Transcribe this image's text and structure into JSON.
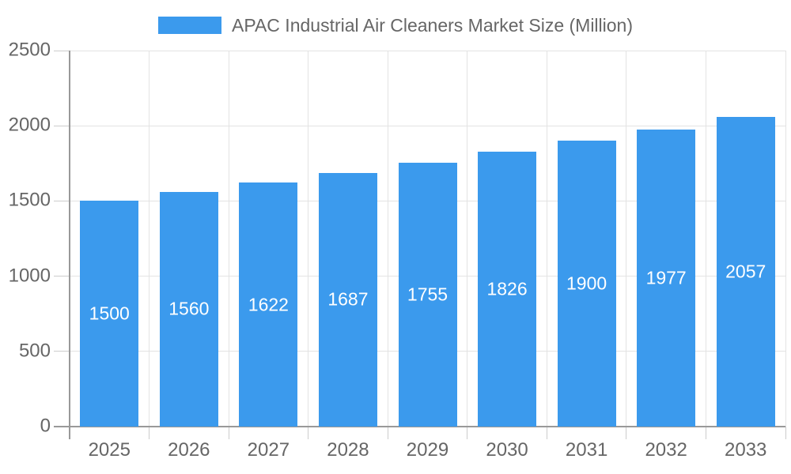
{
  "chart_data": {
    "type": "bar",
    "title": "APAC Industrial Air Cleaners Market Size (Million)",
    "legend": {
      "label": "APAC Industrial Air Cleaners Market Size (Million)",
      "position": "top-center"
    },
    "categories": [
      "2025",
      "2026",
      "2027",
      "2028",
      "2029",
      "2030",
      "2031",
      "2032",
      "2033"
    ],
    "series": [
      {
        "name": "APAC Industrial Air Cleaners Market Size (Million)",
        "values": [
          1500,
          1560,
          1622,
          1687,
          1755,
          1826,
          1900,
          1977,
          2057
        ]
      }
    ],
    "bar_labels": [
      1500,
      1560,
      1622,
      1687,
      1755,
      1826,
      1900,
      1977,
      2057
    ],
    "xlabel": "",
    "ylabel": "",
    "ylim": [
      0,
      2500
    ],
    "yticks": [
      0,
      500,
      1000,
      1500,
      2000,
      2500
    ],
    "grid": "both",
    "legend_position": "top-center"
  },
  "colors": {
    "bar": "#3b9aed",
    "axis_text": "#666666",
    "bar_label_text": "#ffffff",
    "grid_line": "#e3e3e3",
    "tick_line": "#cccccc",
    "axis_line": "#999999",
    "background": "#ffffff"
  }
}
